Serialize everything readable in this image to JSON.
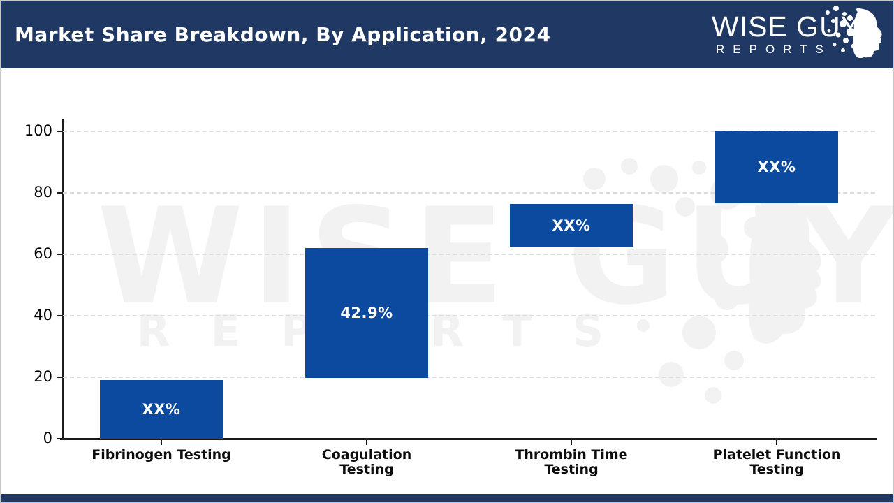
{
  "header": {
    "title": "Market Share Breakdown, By Application, 2024",
    "bg_color": "#1f3864",
    "logo": {
      "line1": "WISE GUY",
      "line2": "REPORTS"
    }
  },
  "watermark": {
    "line1": "WISE GUY",
    "line2": "REPORTS"
  },
  "chart_data": {
    "type": "bar",
    "subtype": "floating-waterfall",
    "title": "Market Share Breakdown, By Application, 2024",
    "categories": [
      "Fibrinogen Testing",
      "Coagulation\nTesting",
      "Thrombin Time\nTesting",
      "Platelet Function\nTesting"
    ],
    "segments": [
      {
        "label": "XX%",
        "start": 0,
        "end": 19.1
      },
      {
        "label": "42.9%",
        "start": 19.8,
        "end": 62.1
      },
      {
        "label": "XX%",
        "start": 62.3,
        "end": 76.4
      },
      {
        "label": "XX%",
        "start": 76.6,
        "end": 100
      }
    ],
    "yticks": [
      0,
      20,
      40,
      60,
      80,
      100
    ],
    "ylim": [
      0,
      104
    ],
    "xlabel": "",
    "ylabel": "",
    "bar_color": "#0b4a9e",
    "grid": "horizontal-dashed",
    "legend": "none"
  },
  "footer": {
    "bg_color": "#1f3864"
  }
}
